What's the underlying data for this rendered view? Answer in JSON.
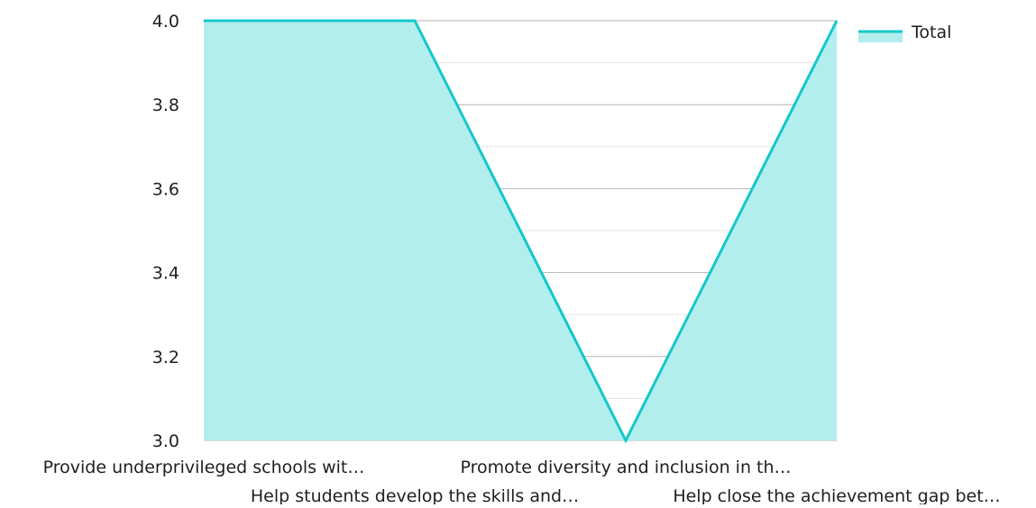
{
  "chart_data": {
    "type": "area",
    "title": "",
    "xlabel": "",
    "ylabel": "",
    "categories": [
      "Provide underprivileged schools wit…",
      "Help students develop the skills and…",
      "Promote diversity and inclusion in th…",
      "Help close the achievement gap bet…"
    ],
    "series": [
      {
        "name": "Total",
        "values": [
          4.0,
          4.0,
          3.0,
          4.0
        ]
      }
    ],
    "ylim": [
      3.0,
      4.0
    ],
    "yticks": [
      "3.0",
      "3.2",
      "3.4",
      "3.6",
      "3.8",
      "4.0"
    ],
    "grid": true,
    "legend": "top-right",
    "colors": {
      "line": "#14c8c8",
      "fill": "#b2eeee"
    }
  }
}
